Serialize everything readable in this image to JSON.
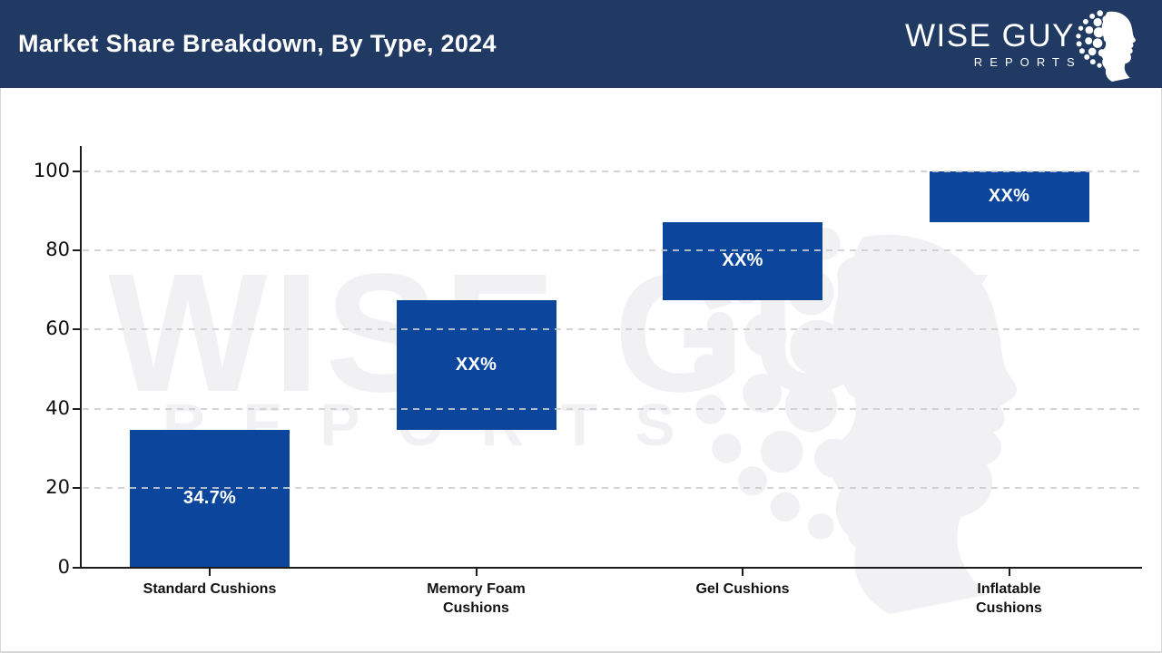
{
  "header": {
    "title": "Market Share Breakdown, By Type, 2024",
    "logo": {
      "line1": "WISE GUY",
      "line2": "REPORTS"
    }
  },
  "watermark": {
    "line1": "WISE GUY",
    "line2": "REPORTS"
  },
  "colors": {
    "header_bg": "#213A64",
    "bar": "#0C459C",
    "axis": "#1C1C1C",
    "gridline": "#CDCDCD",
    "bar_label": "#FFFFFF",
    "watermark": "#F1F1F4",
    "canvas_bg": "#FFFFFF",
    "border": "#D6D6D6"
  },
  "chart_data": {
    "type": "bar",
    "subtype": "waterfall",
    "title": "Market Share Breakdown, By Type, 2024",
    "xlabel": "",
    "ylabel": "",
    "categories": [
      "Standard Cushions",
      "Memory Foam\nCushions",
      "Gel Cushions",
      "Inflatable\nCushions"
    ],
    "segments": [
      {
        "category": "Standard Cushions",
        "label": "34.7%",
        "start": 0,
        "end": 34.7
      },
      {
        "category": "Memory Foam Cushions",
        "label": "XX%",
        "start": 34.7,
        "end": 67.5
      },
      {
        "category": "Gel Cushions",
        "label": "XX%",
        "start": 67.5,
        "end": 87.0
      },
      {
        "category": "Inflatable Cushions",
        "label": "XX%",
        "start": 87.0,
        "end": 100.0
      }
    ],
    "yticks": [
      0,
      20,
      40,
      60,
      80,
      100
    ],
    "ylim": [
      0,
      106
    ],
    "grid": "horizontal dashed, drawn over bars",
    "legend": "none"
  }
}
